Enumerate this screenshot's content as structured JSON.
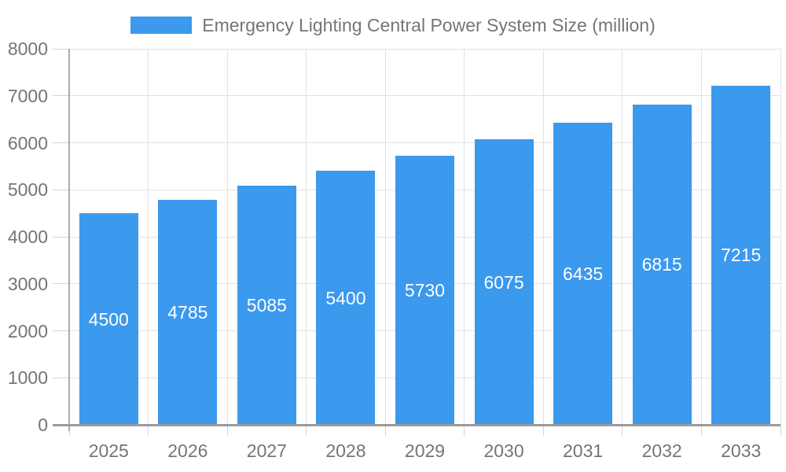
{
  "legend": {
    "label": "Emergency Lighting Central Power System Size (million)",
    "swatch_color": "#3b99ee"
  },
  "chart_data": {
    "type": "bar",
    "title": "Emergency Lighting Central Power System Size (million)",
    "series_name": "Emergency Lighting Central Power System Size (million)",
    "categories": [
      "2025",
      "2026",
      "2027",
      "2028",
      "2029",
      "2030",
      "2031",
      "2032",
      "2033"
    ],
    "values": [
      4500,
      4785,
      5085,
      5400,
      5730,
      6075,
      6435,
      6815,
      7215
    ],
    "xlabel": "",
    "ylabel": "",
    "ylim": [
      0,
      8000
    ],
    "ytick_step": 1000,
    "ytick_labels": [
      "0",
      "1000",
      "2000",
      "3000",
      "4000",
      "5000",
      "6000",
      "7000",
      "8000"
    ],
    "grid": true,
    "legend_position": "top",
    "bar_color": "#3b99ee",
    "value_label_color": "#ffffff",
    "axis_label_color": "#757575",
    "gridline_color": "#e2e2e2",
    "value_labels_shown": true
  }
}
